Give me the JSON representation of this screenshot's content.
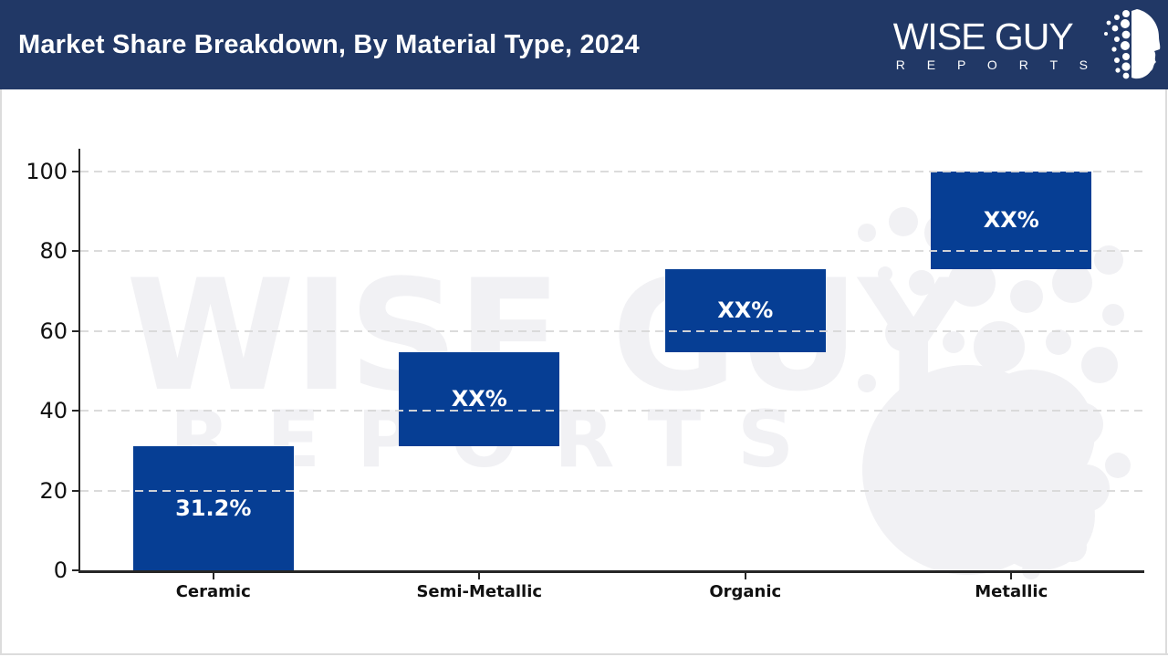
{
  "header": {
    "title": "Market Share Breakdown, By Material Type, 2024",
    "logo": {
      "name": "WISE GUY",
      "subname": "R E P O R T S"
    }
  },
  "watermark": {
    "big_text": "WISE GUY",
    "small_text": "REPORTS"
  },
  "chart_data": {
    "type": "bar",
    "subtype": "waterfall",
    "title": "Market Share Breakdown, By Material Type, 2024",
    "categories": [
      "Ceramic",
      "Semi-Metallic",
      "Organic",
      "Metallic"
    ],
    "segments": [
      {
        "category": "Ceramic",
        "start": 0,
        "end": 31.2,
        "label": "31.2%"
      },
      {
        "category": "Semi-Metallic",
        "start": 31.2,
        "end": 54.7,
        "label": "XX%"
      },
      {
        "category": "Organic",
        "start": 54.7,
        "end": 75.5,
        "label": "XX%"
      },
      {
        "category": "Metallic",
        "start": 75.5,
        "end": 100,
        "label": "XX%"
      }
    ],
    "xlabel": "",
    "ylabel": "",
    "ylim": [
      0,
      105.6
    ],
    "yticks": [
      0,
      20,
      40,
      60,
      80,
      100
    ],
    "grid": true,
    "legend": false,
    "bar_color": "#063e94",
    "bar_label_color": "#ffffff"
  },
  "colors": {
    "header_bg": "#213866",
    "header_text": "#ffffff",
    "bar": "#063e94",
    "grid": "#d9d9d9",
    "axis": "#262626",
    "watermark": "#f1f1f4",
    "page_border": "#dcdcdc"
  }
}
